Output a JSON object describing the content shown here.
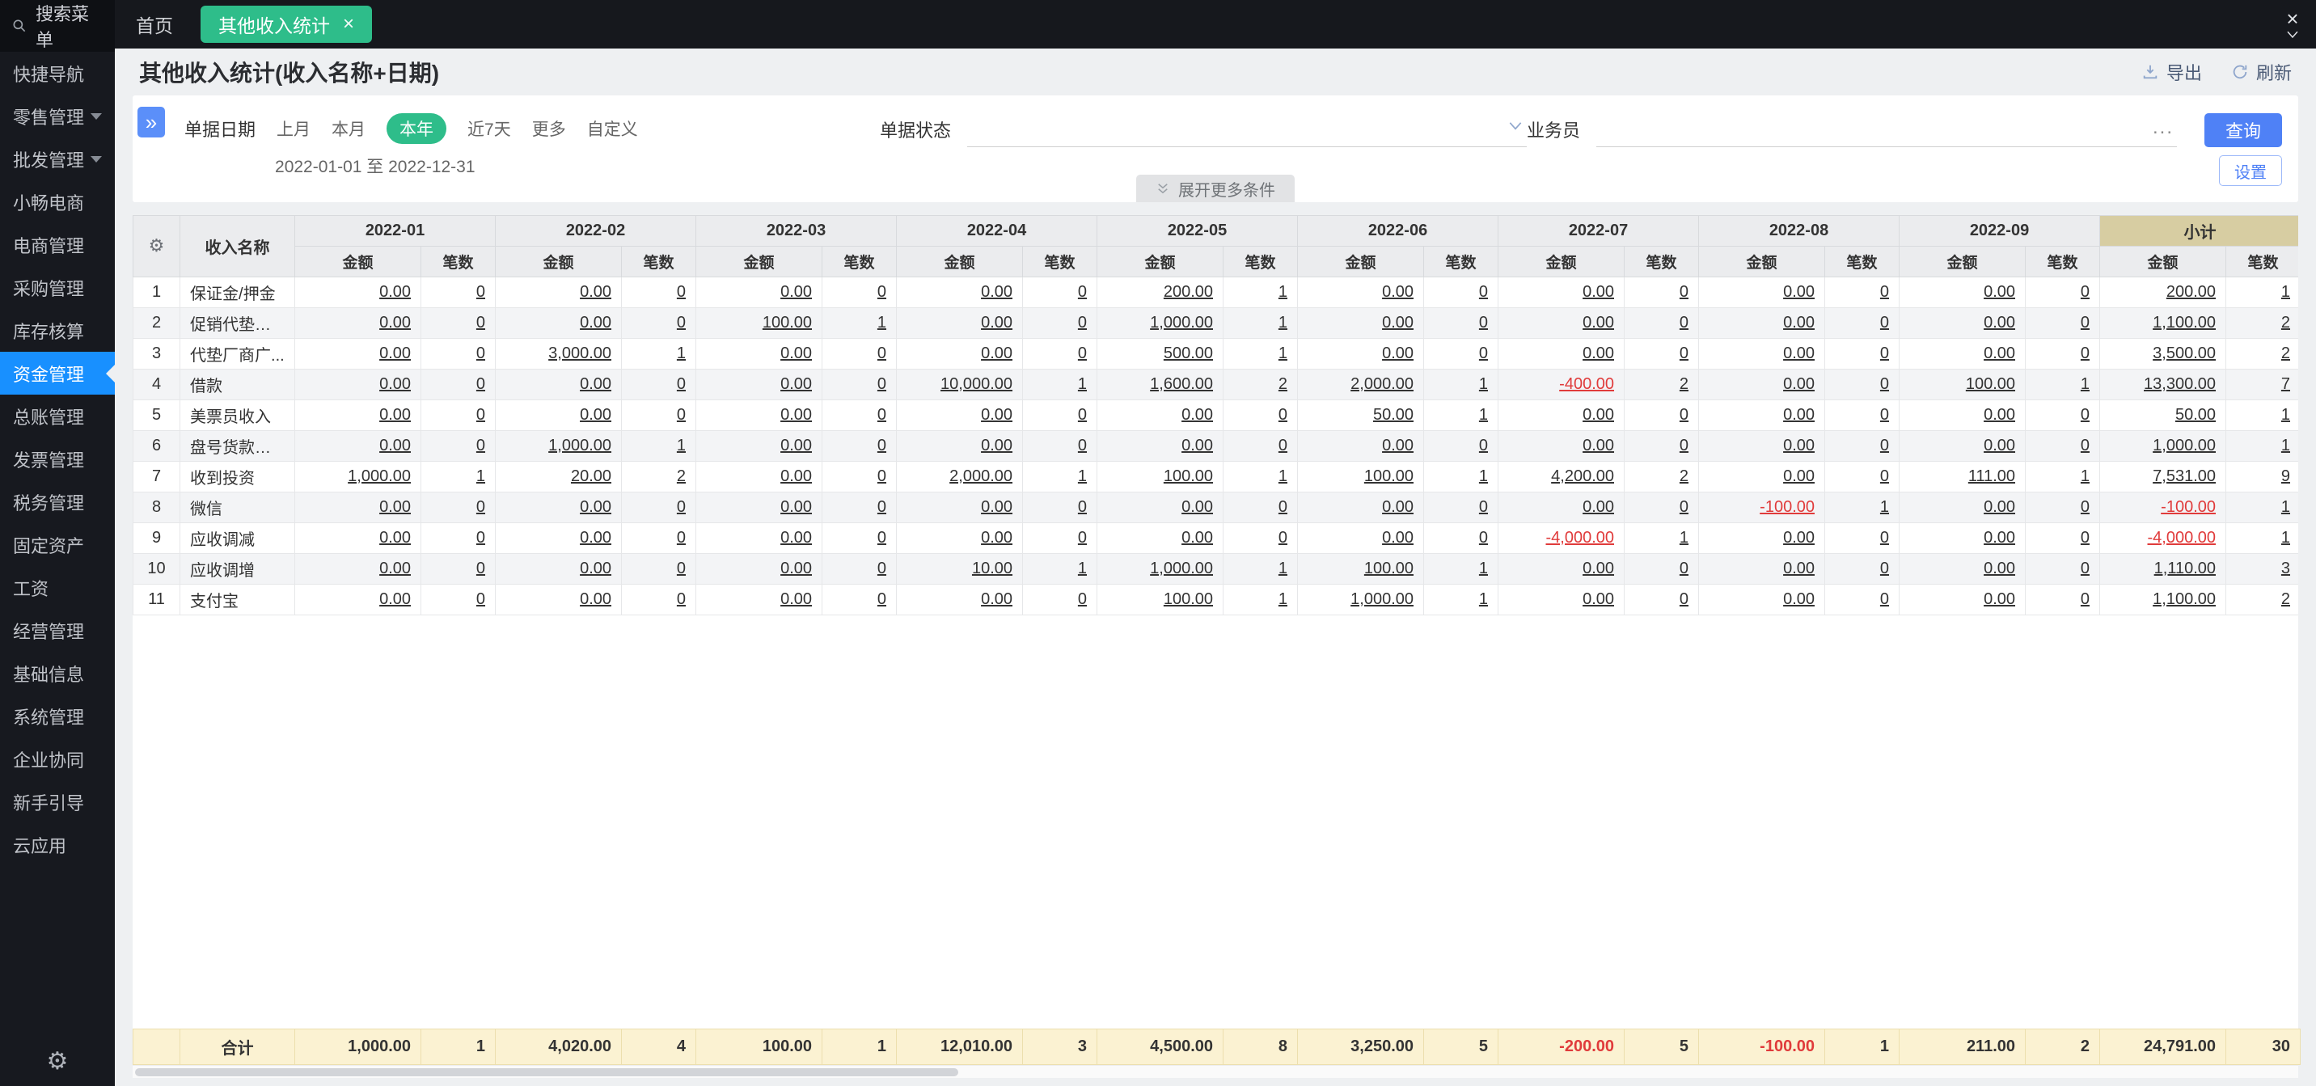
{
  "sidebar": {
    "search_label": "搜索菜单",
    "items": [
      {
        "label": "快捷导航"
      },
      {
        "label": "零售管理",
        "expandable": true
      },
      {
        "label": "批发管理",
        "expandable": true
      },
      {
        "label": "小畅电商"
      },
      {
        "label": "电商管理"
      },
      {
        "label": "采购管理"
      },
      {
        "label": "库存核算"
      },
      {
        "label": "资金管理",
        "active": true
      },
      {
        "label": "总账管理"
      },
      {
        "label": "发票管理"
      },
      {
        "label": "税务管理"
      },
      {
        "label": "固定资产"
      },
      {
        "label": "工资"
      },
      {
        "label": "经营管理"
      },
      {
        "label": "基础信息"
      },
      {
        "label": "系统管理"
      },
      {
        "label": "企业协同"
      },
      {
        "label": "新手引导"
      },
      {
        "label": "云应用"
      }
    ]
  },
  "tabs": {
    "home": "首页",
    "active": "其他收入统计"
  },
  "page": {
    "title": "其他收入统计(收入名称+日期)",
    "export_label": "导出",
    "refresh_label": "刷新"
  },
  "filters": {
    "date_label": "单据日期",
    "quick_options": [
      "上月",
      "本月",
      "本年",
      "近7天",
      "更多",
      "自定义"
    ],
    "selected_quick": "本年",
    "date_range": "2022-01-01 至 2022-12-31",
    "status_label": "单据状态",
    "salesperson_label": "业务员",
    "query_button": "查询",
    "settings_button": "设置",
    "expand_more": "展开更多条件"
  },
  "table": {
    "name_header": "收入名称",
    "amount_header": "金额",
    "count_header": "笔数",
    "subtotal_header": "小计",
    "total_label": "合计",
    "months": [
      "2022-01",
      "2022-02",
      "2022-03",
      "2022-04",
      "2022-05",
      "2022-06",
      "2022-07",
      "2022-08",
      "2022-09"
    ],
    "rows": [
      {
        "index": 1,
        "name": "保证金/押金",
        "cells": [
          [
            "0.00",
            "0"
          ],
          [
            "0.00",
            "0"
          ],
          [
            "0.00",
            "0"
          ],
          [
            "0.00",
            "0"
          ],
          [
            "200.00",
            "1"
          ],
          [
            "0.00",
            "0"
          ],
          [
            "0.00",
            "0"
          ],
          [
            "0.00",
            "0"
          ],
          [
            "0.00",
            "0"
          ],
          [
            "200.00",
            "1"
          ]
        ]
      },
      {
        "index": 2,
        "name": "促销代垫费用",
        "cells": [
          [
            "0.00",
            "0"
          ],
          [
            "0.00",
            "0"
          ],
          [
            "100.00",
            "1"
          ],
          [
            "0.00",
            "0"
          ],
          [
            "1,000.00",
            "1"
          ],
          [
            "0.00",
            "0"
          ],
          [
            "0.00",
            "0"
          ],
          [
            "0.00",
            "0"
          ],
          [
            "0.00",
            "0"
          ],
          [
            "1,100.00",
            "2"
          ]
        ]
      },
      {
        "index": 3,
        "name": "代垫厂商广...",
        "cells": [
          [
            "0.00",
            "0"
          ],
          [
            "3,000.00",
            "1"
          ],
          [
            "0.00",
            "0"
          ],
          [
            "0.00",
            "0"
          ],
          [
            "500.00",
            "1"
          ],
          [
            "0.00",
            "0"
          ],
          [
            "0.00",
            "0"
          ],
          [
            "0.00",
            "0"
          ],
          [
            "0.00",
            "0"
          ],
          [
            "3,500.00",
            "2"
          ]
        ]
      },
      {
        "index": 4,
        "name": "借款",
        "cells": [
          [
            "0.00",
            "0"
          ],
          [
            "0.00",
            "0"
          ],
          [
            "0.00",
            "0"
          ],
          [
            "10,000.00",
            "1"
          ],
          [
            "1,600.00",
            "2"
          ],
          [
            "2,000.00",
            "1"
          ],
          [
            "-400.00",
            "2"
          ],
          [
            "0.00",
            "0"
          ],
          [
            "100.00",
            "1"
          ],
          [
            "13,300.00",
            "7"
          ]
        ]
      },
      {
        "index": 5,
        "name": "美票员收入",
        "cells": [
          [
            "0.00",
            "0"
          ],
          [
            "0.00",
            "0"
          ],
          [
            "0.00",
            "0"
          ],
          [
            "0.00",
            "0"
          ],
          [
            "0.00",
            "0"
          ],
          [
            "50.00",
            "1"
          ],
          [
            "0.00",
            "0"
          ],
          [
            "0.00",
            "0"
          ],
          [
            "0.00",
            "0"
          ],
          [
            "50.00",
            "1"
          ]
        ]
      },
      {
        "index": 6,
        "name": "盘号货款收入",
        "cells": [
          [
            "0.00",
            "0"
          ],
          [
            "1,000.00",
            "1"
          ],
          [
            "0.00",
            "0"
          ],
          [
            "0.00",
            "0"
          ],
          [
            "0.00",
            "0"
          ],
          [
            "0.00",
            "0"
          ],
          [
            "0.00",
            "0"
          ],
          [
            "0.00",
            "0"
          ],
          [
            "0.00",
            "0"
          ],
          [
            "1,000.00",
            "1"
          ]
        ]
      },
      {
        "index": 7,
        "name": "收到投资",
        "cells": [
          [
            "1,000.00",
            "1"
          ],
          [
            "20.00",
            "2"
          ],
          [
            "0.00",
            "0"
          ],
          [
            "2,000.00",
            "1"
          ],
          [
            "100.00",
            "1"
          ],
          [
            "100.00",
            "1"
          ],
          [
            "4,200.00",
            "2"
          ],
          [
            "0.00",
            "0"
          ],
          [
            "111.00",
            "1"
          ],
          [
            "7,531.00",
            "9"
          ]
        ]
      },
      {
        "index": 8,
        "name": "微信",
        "cells": [
          [
            "0.00",
            "0"
          ],
          [
            "0.00",
            "0"
          ],
          [
            "0.00",
            "0"
          ],
          [
            "0.00",
            "0"
          ],
          [
            "0.00",
            "0"
          ],
          [
            "0.00",
            "0"
          ],
          [
            "0.00",
            "0"
          ],
          [
            "-100.00",
            "1"
          ],
          [
            "0.00",
            "0"
          ],
          [
            "-100.00",
            "1"
          ]
        ]
      },
      {
        "index": 9,
        "name": "应收调减",
        "cells": [
          [
            "0.00",
            "0"
          ],
          [
            "0.00",
            "0"
          ],
          [
            "0.00",
            "0"
          ],
          [
            "0.00",
            "0"
          ],
          [
            "0.00",
            "0"
          ],
          [
            "0.00",
            "0"
          ],
          [
            "-4,000.00",
            "1"
          ],
          [
            "0.00",
            "0"
          ],
          [
            "0.00",
            "0"
          ],
          [
            "-4,000.00",
            "1"
          ]
        ]
      },
      {
        "index": 10,
        "name": "应收调增",
        "cells": [
          [
            "0.00",
            "0"
          ],
          [
            "0.00",
            "0"
          ],
          [
            "0.00",
            "0"
          ],
          [
            "10.00",
            "1"
          ],
          [
            "1,000.00",
            "1"
          ],
          [
            "100.00",
            "1"
          ],
          [
            "0.00",
            "0"
          ],
          [
            "0.00",
            "0"
          ],
          [
            "0.00",
            "0"
          ],
          [
            "1,110.00",
            "3"
          ]
        ]
      },
      {
        "index": 11,
        "name": "支付宝",
        "cells": [
          [
            "0.00",
            "0"
          ],
          [
            "0.00",
            "0"
          ],
          [
            "0.00",
            "0"
          ],
          [
            "0.00",
            "0"
          ],
          [
            "100.00",
            "1"
          ],
          [
            "1,000.00",
            "1"
          ],
          [
            "0.00",
            "0"
          ],
          [
            "0.00",
            "0"
          ],
          [
            "0.00",
            "0"
          ],
          [
            "1,100.00",
            "2"
          ]
        ]
      }
    ],
    "totals": [
      [
        "1,000.00",
        "1"
      ],
      [
        "4,020.00",
        "4"
      ],
      [
        "100.00",
        "1"
      ],
      [
        "12,010.00",
        "3"
      ],
      [
        "4,500.00",
        "8"
      ],
      [
        "3,250.00",
        "5"
      ],
      [
        "-200.00",
        "5"
      ],
      [
        "-100.00",
        "1"
      ],
      [
        "211.00",
        "2"
      ],
      [
        "24,791.00",
        "30"
      ]
    ]
  }
}
